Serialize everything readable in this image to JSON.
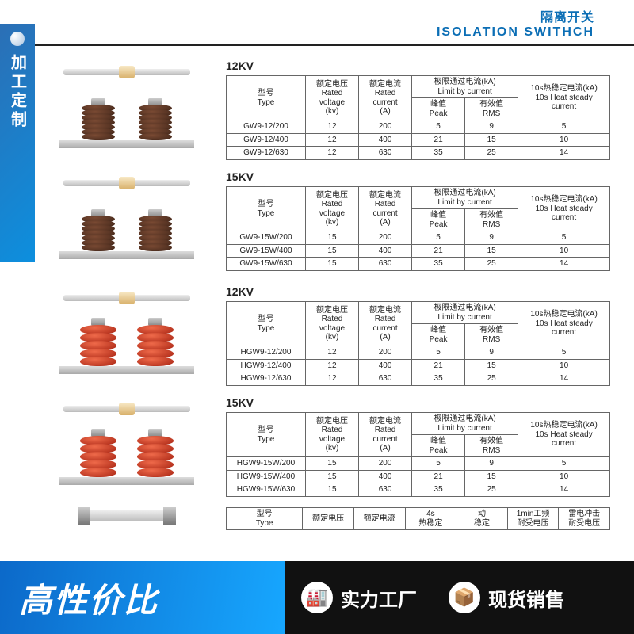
{
  "header": {
    "cn": "隔离开关",
    "en": "ISOLATION SWITHCH"
  },
  "side_banner": "加工定制",
  "colors": {
    "accent_blue": "#0b6eb5",
    "banner_grad_from": "#0c69c9",
    "banner_grad_to": "#17a7ff",
    "black": "#111111",
    "insulator_brown": "#3e2418",
    "insulator_red": "#a62312"
  },
  "columns": {
    "type": {
      "line1": "型号",
      "line2": "Type"
    },
    "rated_voltage": {
      "line1": "额定电压",
      "line2": "Rated voltage",
      "line3": "(kv)"
    },
    "rated_current": {
      "line1": "额定电流",
      "line2": "Rated current",
      "line3": "(A)"
    },
    "limit": {
      "line1": "极限通过电流(kA)",
      "line2": "Limit by current"
    },
    "peak": {
      "line1": "峰值",
      "line2": "Peak"
    },
    "rms": {
      "line1": "有效值",
      "line2": "RMS"
    },
    "heat": {
      "line1": "10s热稳定电流(kA)",
      "line2": "10s Heat steady",
      "line3": "current"
    }
  },
  "sections": [
    {
      "id": "12kv",
      "voltage_label": "12KV",
      "insulator_style": "disc-brown",
      "rows": [
        {
          "type": "GW9-12/200",
          "kv": "12",
          "a": "200",
          "peak": "5",
          "rms": "9",
          "heat": "5"
        },
        {
          "type": "GW9-12/400",
          "kv": "12",
          "a": "400",
          "peak": "21",
          "rms": "15",
          "heat": "10"
        },
        {
          "type": "GW9-12/630",
          "kv": "12",
          "a": "630",
          "peak": "35",
          "rms": "25",
          "heat": "14"
        }
      ]
    },
    {
      "id": "15kv",
      "voltage_label": "15KV",
      "insulator_style": "disc-brown",
      "rows": [
        {
          "type": "GW9-15W/200",
          "kv": "15",
          "a": "200",
          "peak": "5",
          "rms": "9",
          "heat": "5"
        },
        {
          "type": "GW9-15W/400",
          "kv": "15",
          "a": "400",
          "peak": "21",
          "rms": "15",
          "heat": "10"
        },
        {
          "type": "GW9-15W/630",
          "kv": "15",
          "a": "630",
          "peak": "35",
          "rms": "25",
          "heat": "14"
        }
      ]
    },
    {
      "id": "h12kv",
      "voltage_label": "12KV",
      "insulator_style": "fin-red",
      "rows": [
        {
          "type": "HGW9-12/200",
          "kv": "12",
          "a": "200",
          "peak": "5",
          "rms": "9",
          "heat": "5"
        },
        {
          "type": "HGW9-12/400",
          "kv": "12",
          "a": "400",
          "peak": "21",
          "rms": "15",
          "heat": "10"
        },
        {
          "type": "HGW9-12/630",
          "kv": "12",
          "a": "630",
          "peak": "35",
          "rms": "25",
          "heat": "14"
        }
      ]
    },
    {
      "id": "h15kv",
      "voltage_label": "15KV",
      "insulator_style": "fin-red",
      "rows": [
        {
          "type": "HGW9-15W/200",
          "kv": "15",
          "a": "200",
          "peak": "5",
          "rms": "9",
          "heat": "5"
        },
        {
          "type": "HGW9-15W/400",
          "kv": "15",
          "a": "400",
          "peak": "21",
          "rms": "15",
          "heat": "10"
        },
        {
          "type": "HGW9-15W/630",
          "kv": "15",
          "a": "630",
          "peak": "35",
          "rms": "25",
          "heat": "14"
        }
      ]
    }
  ],
  "gn_columns": {
    "type": {
      "line1": "型号",
      "line2": "Type"
    },
    "rated_voltage": {
      "line1": "额定电压"
    },
    "rated_current": {
      "line1": "额定电流"
    },
    "fours": {
      "line1": "4s",
      "line2": "热稳定"
    },
    "dyn": {
      "line1": "动",
      "line2": "稳定"
    },
    "onemin": {
      "line1": "1min工频",
      "line2": "耐受电压"
    },
    "imp": {
      "line1": "雷电冲击",
      "line2": "耐受电压"
    }
  },
  "bottom": {
    "slogan": "高性价比",
    "badges": [
      {
        "icon": "factory-icon",
        "glyph": "🏭",
        "label": "实力工厂"
      },
      {
        "icon": "box-icon",
        "glyph": "📦",
        "label": "现货销售"
      }
    ]
  }
}
